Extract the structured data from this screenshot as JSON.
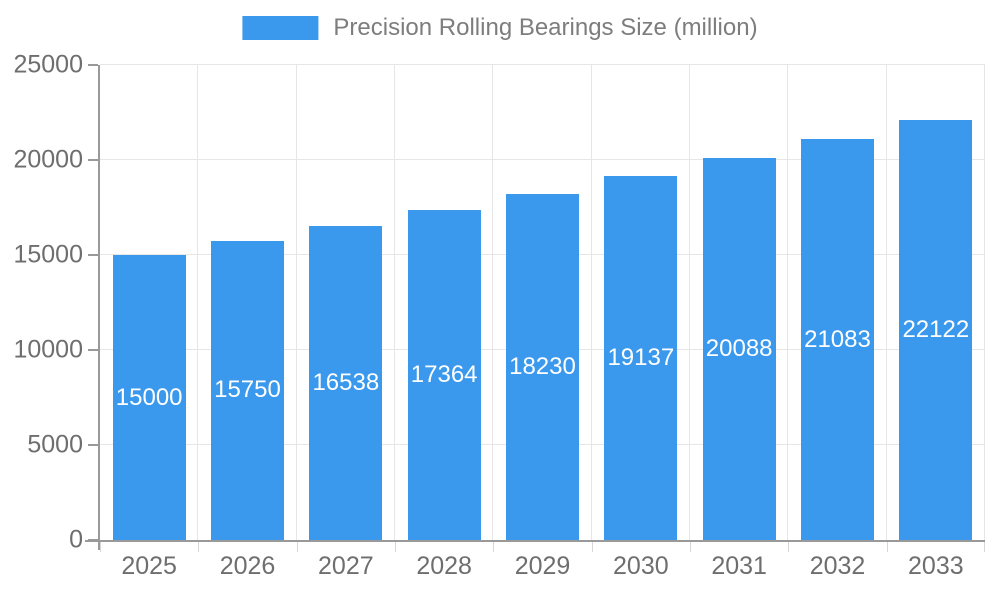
{
  "legend": {
    "label": "Precision Rolling Bearings Size (million)"
  },
  "colors": {
    "bar": "#3A99ED",
    "grid": "#E6E6E6",
    "axis": "#999999",
    "x_tick": "#D6D6D6",
    "axis_text": "#6E6E6E",
    "legend_text": "#7D7D7D",
    "data_label": "#FFFFFF",
    "background": "#FFFFFF"
  },
  "chart_data": {
    "type": "bar",
    "title": "Precision Rolling Bearings Size (million)",
    "categories": [
      "2025",
      "2026",
      "2027",
      "2028",
      "2029",
      "2030",
      "2031",
      "2032",
      "2033"
    ],
    "values": [
      15000,
      15750,
      16538,
      17364,
      18230,
      19137,
      20088,
      21083,
      22122
    ],
    "series_name": "Precision Rolling Bearings Size (million)",
    "xlabel": "",
    "ylabel": "",
    "ylim": [
      0,
      25000
    ],
    "yticks": [
      0,
      5000,
      10000,
      15000,
      20000,
      25000
    ],
    "ytick_labels": [
      "0",
      "5000",
      "10000",
      "15000",
      "20000",
      "25000"
    ],
    "grid": true,
    "legend_position": "top",
    "data_labels_position": "inside-center",
    "bar_width_ratio": 0.74
  }
}
